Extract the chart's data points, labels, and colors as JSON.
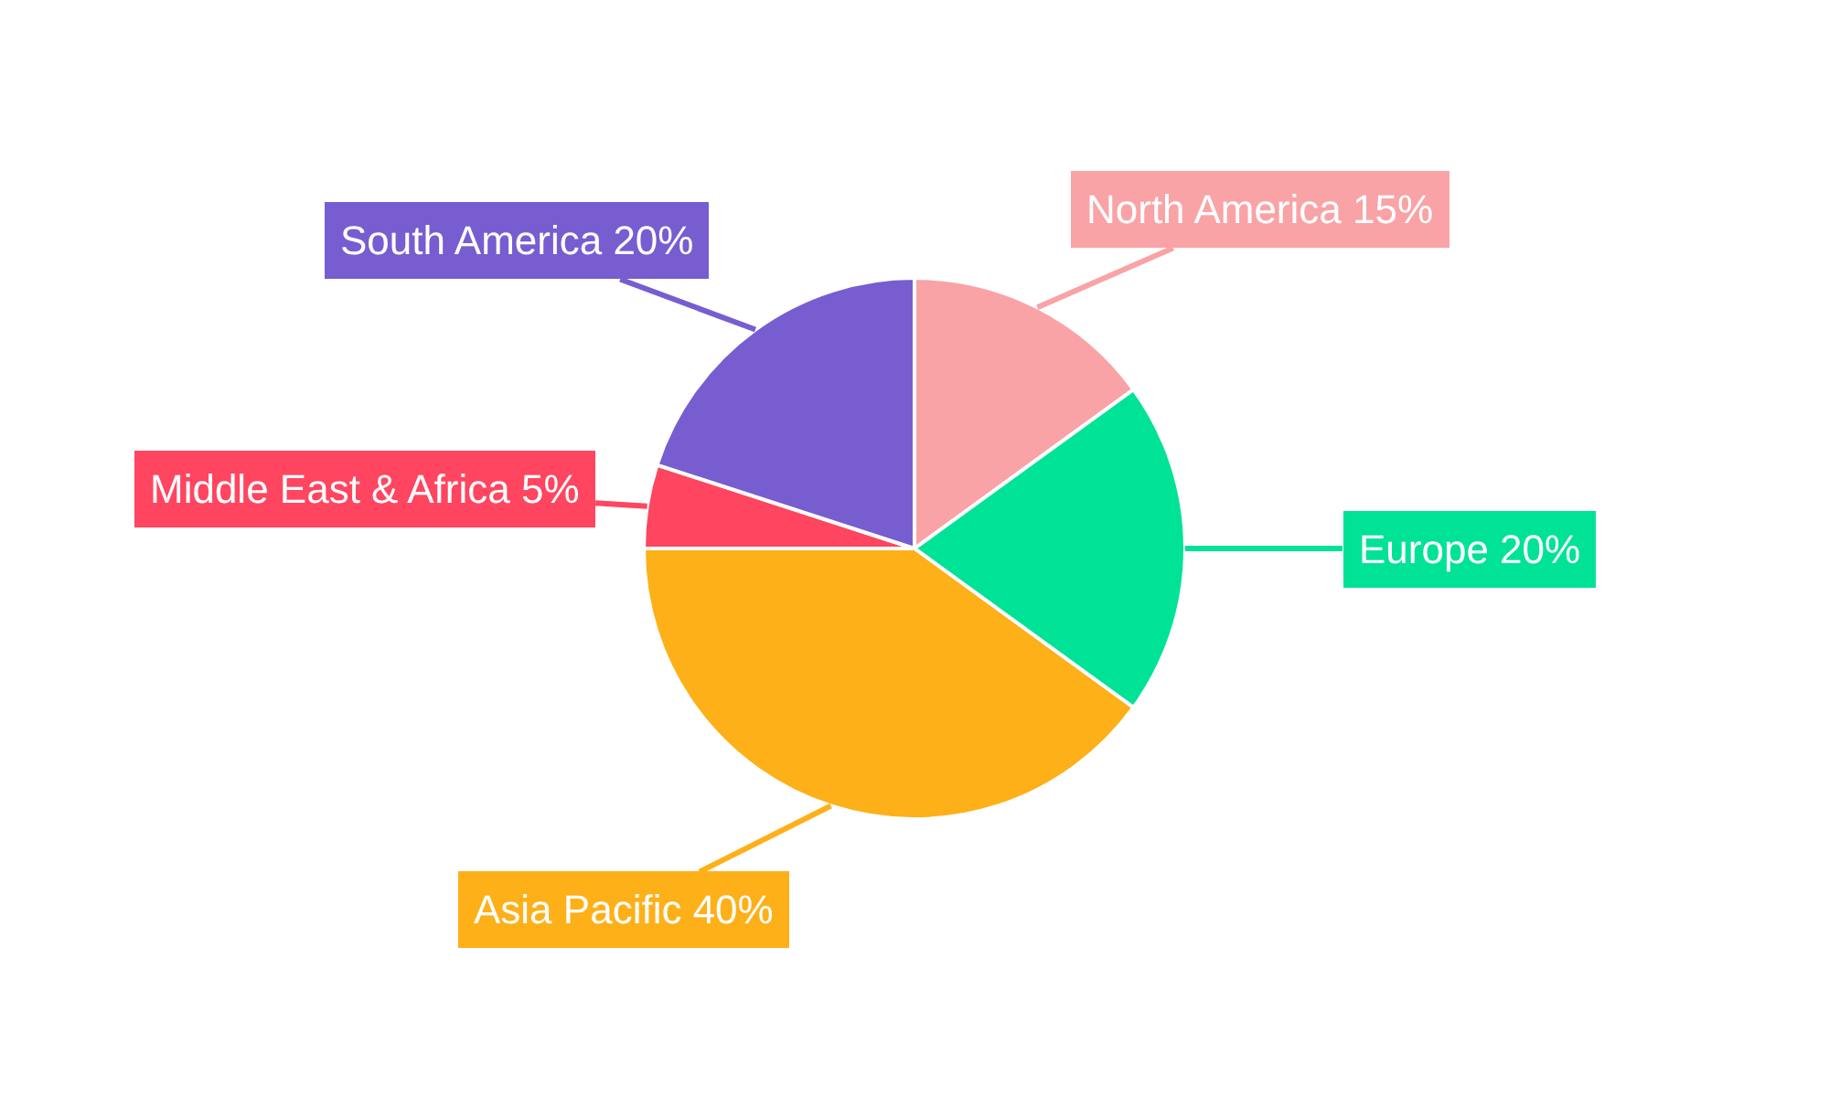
{
  "chart_data": {
    "type": "pie",
    "categories": [
      "North America",
      "Europe",
      "Asia Pacific",
      "Middle East & Africa",
      "South America"
    ],
    "values": [
      15,
      20,
      40,
      5,
      20
    ],
    "value_labels": [
      "15%",
      "20%",
      "40%",
      "5%",
      "20%"
    ],
    "colors": [
      "#f9a3a6",
      "#00e396",
      "#feb019",
      "#ff4560",
      "#775dd0"
    ]
  }
}
